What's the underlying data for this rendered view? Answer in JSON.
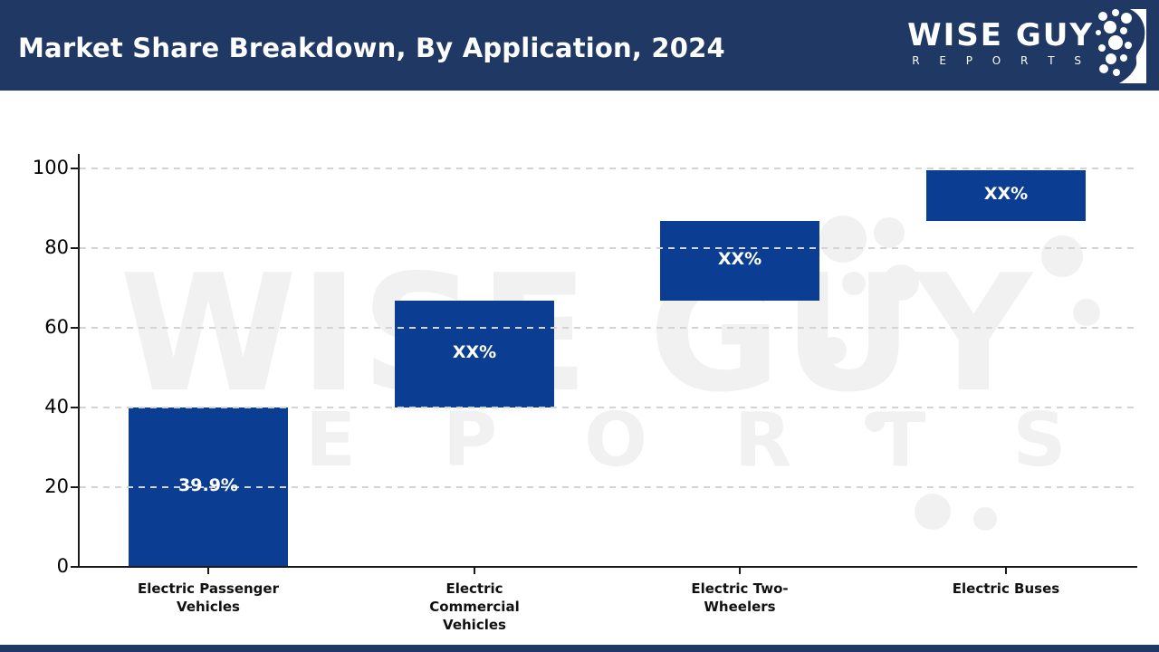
{
  "header": {
    "title": "Market Share Breakdown, By Application, 2024",
    "logo": {
      "primary": "WISE GUY",
      "secondary": "R E P O R T S"
    }
  },
  "watermark": {
    "primary": "WISE GUY",
    "secondary": "REPORTS"
  },
  "colors": {
    "header_bg": "#1f3864",
    "footer_bg": "#1f3864",
    "bar": "#0b3e92",
    "bar_label": "#ffffff",
    "gridline": "#d4d4d4",
    "axis": "#1a1a1a",
    "watermark": "#f1f1f1"
  },
  "chart_data": {
    "type": "bar",
    "subtype": "floating-waterfall",
    "title": "Market Share Breakdown, By Application, 2024",
    "categories": [
      "Electric Passenger\nVehicles",
      "Electric\nCommercial\nVehicles",
      "Electric Two-\nWheelers",
      "Electric Buses"
    ],
    "segments": [
      {
        "category": "Electric Passenger Vehicles",
        "start": 0,
        "end": 39.9,
        "label": "39.9%"
      },
      {
        "category": "Electric Commercial Vehicles",
        "start": 39.9,
        "end": 66.8,
        "label": "XX%"
      },
      {
        "category": "Electric Two-Wheelers",
        "start": 66.8,
        "end": 86.8,
        "label": "XX%"
      },
      {
        "category": "Electric Buses",
        "start": 86.8,
        "end": 99.5,
        "label": "XX%"
      }
    ],
    "xlabel": "",
    "ylabel": "",
    "ylim": [
      0,
      100
    ],
    "yticks": [
      0,
      20,
      40,
      60,
      80,
      100
    ],
    "grid": "horizontal-dashed-above-bars",
    "legend": "none"
  }
}
